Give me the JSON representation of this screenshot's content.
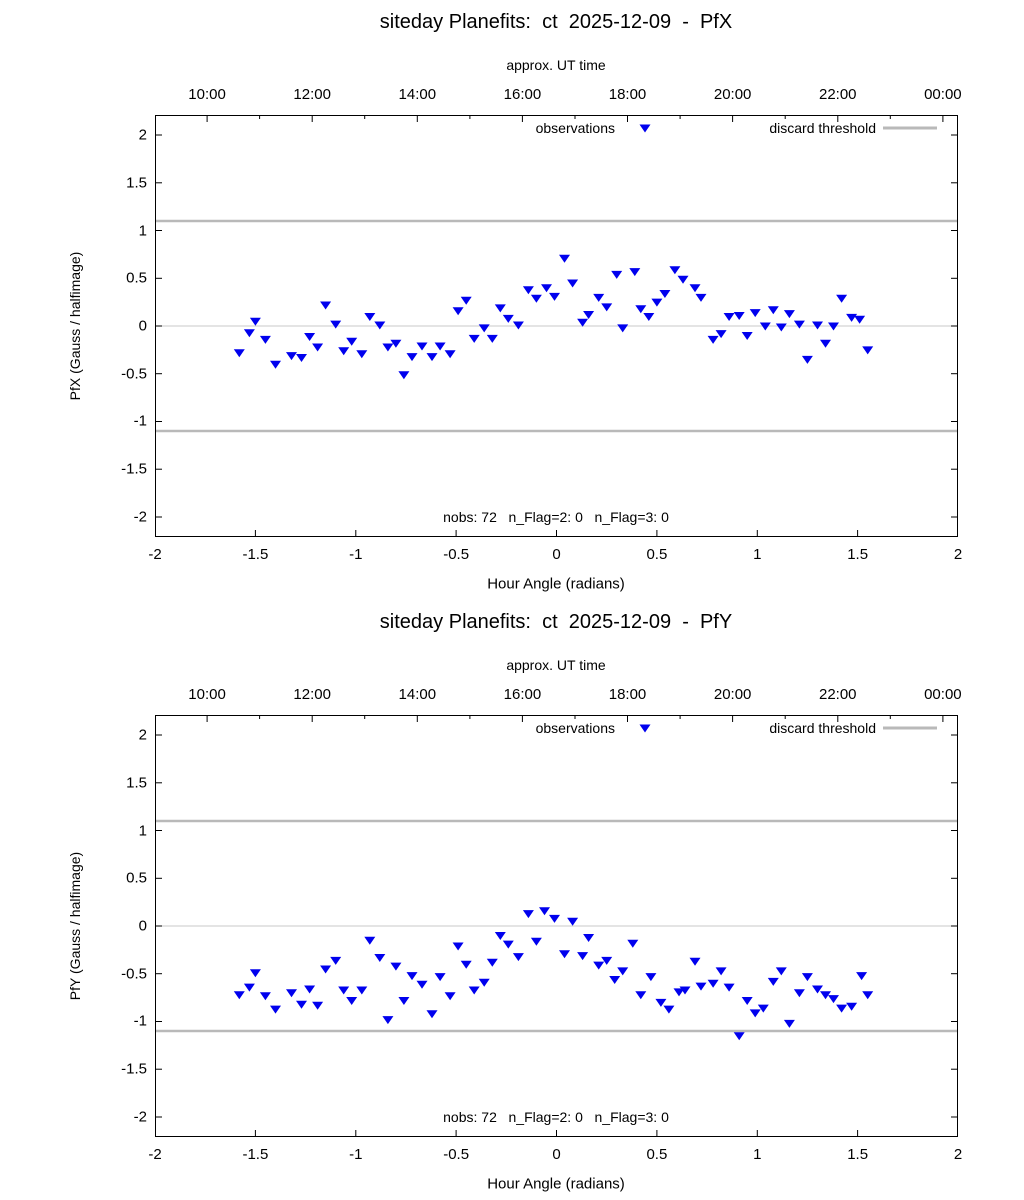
{
  "chart_data": [
    {
      "type": "scatter",
      "title": "siteday Planefits:  ct  2025-12-09  -  PfX",
      "top_axis_label": "approx. UT time",
      "xlabel": "Hour Angle (radians)",
      "ylabel": "PfX (Gauss / halfimage)",
      "annotation": "nobs: 72   n_Flag=2: 0   n_Flag=3: 0",
      "legend": [
        {
          "label": "observations",
          "marker": "triangle-down"
        },
        {
          "label": "discard threshold",
          "marker": "line"
        }
      ],
      "x_ticks": [
        -2,
        -1.5,
        -1,
        -0.5,
        0,
        0.5,
        1,
        1.5,
        2
      ],
      "y_ticks": [
        2,
        1.5,
        1,
        0.5,
        0,
        -0.5,
        -1,
        -1.5,
        -2
      ],
      "top_ticks": [
        {
          "label": "10:00",
          "ha": -1.7406
        },
        {
          "label": "12:00",
          "ha": -1.217
        },
        {
          "label": "14:00",
          "ha": -0.6934
        },
        {
          "label": "16:00",
          "ha": -0.1698
        },
        {
          "label": "18:00",
          "ha": 0.3538
        },
        {
          "label": "20:00",
          "ha": 0.8774
        },
        {
          "label": "22:00",
          "ha": 1.401
        },
        {
          "label": "00:00",
          "ha": 1.9246
        }
      ],
      "xlim": [
        -2,
        2
      ],
      "ylim": [
        -2.21,
        2.21
      ],
      "zero_line": 0,
      "discard_thresholds": [
        1.1,
        -1.1
      ],
      "colors": {
        "marker": "#0000ee",
        "threshold_line": "#b9b9b9",
        "zero_line": "#c9c9c9"
      },
      "points": [
        [
          -1.58,
          -0.28
        ],
        [
          -1.53,
          -0.07
        ],
        [
          -1.5,
          0.05
        ],
        [
          -1.45,
          -0.14
        ],
        [
          -1.4,
          -0.4
        ],
        [
          -1.32,
          -0.31
        ],
        [
          -1.27,
          -0.33
        ],
        [
          -1.23,
          -0.11
        ],
        [
          -1.19,
          -0.22
        ],
        [
          -1.15,
          0.22
        ],
        [
          -1.1,
          0.02
        ],
        [
          -1.06,
          -0.26
        ],
        [
          -1.02,
          -0.16
        ],
        [
          -0.97,
          -0.29
        ],
        [
          -0.93,
          0.1
        ],
        [
          -0.88,
          0.01
        ],
        [
          -0.84,
          -0.22
        ],
        [
          -0.8,
          -0.18
        ],
        [
          -0.76,
          -0.51
        ],
        [
          -0.72,
          -0.32
        ],
        [
          -0.67,
          -0.21
        ],
        [
          -0.62,
          -0.32
        ],
        [
          -0.58,
          -0.21
        ],
        [
          -0.53,
          -0.29
        ],
        [
          -0.49,
          0.16
        ],
        [
          -0.45,
          0.27
        ],
        [
          -0.41,
          -0.13
        ],
        [
          -0.36,
          -0.02
        ],
        [
          -0.32,
          -0.13
        ],
        [
          -0.28,
          0.19
        ],
        [
          -0.24,
          0.08
        ],
        [
          -0.19,
          0.01
        ],
        [
          -0.14,
          0.38
        ],
        [
          -0.1,
          0.29
        ],
        [
          -0.05,
          0.4
        ],
        [
          -0.01,
          0.31
        ],
        [
          0.04,
          0.71
        ],
        [
          0.08,
          0.45
        ],
        [
          0.13,
          0.04
        ],
        [
          0.16,
          0.12
        ],
        [
          0.21,
          0.3
        ],
        [
          0.25,
          0.2
        ],
        [
          0.3,
          0.54
        ],
        [
          0.33,
          -0.02
        ],
        [
          0.39,
          0.57
        ],
        [
          0.42,
          0.18
        ],
        [
          0.46,
          0.1
        ],
        [
          0.5,
          0.25
        ],
        [
          0.54,
          0.34
        ],
        [
          0.59,
          0.59
        ],
        [
          0.63,
          0.49
        ],
        [
          0.69,
          0.4
        ],
        [
          0.72,
          0.3
        ],
        [
          0.78,
          -0.14
        ],
        [
          0.82,
          -0.08
        ],
        [
          0.86,
          0.1
        ],
        [
          0.91,
          0.11
        ],
        [
          0.95,
          -0.1
        ],
        [
          0.99,
          0.14
        ],
        [
          1.04,
          0.0
        ],
        [
          1.08,
          0.17
        ],
        [
          1.12,
          -0.01
        ],
        [
          1.16,
          0.13
        ],
        [
          1.21,
          0.02
        ],
        [
          1.25,
          -0.35
        ],
        [
          1.3,
          0.01
        ],
        [
          1.34,
          -0.18
        ],
        [
          1.38,
          0.0
        ],
        [
          1.42,
          0.29
        ],
        [
          1.47,
          0.09
        ],
        [
          1.51,
          0.07
        ],
        [
          1.55,
          -0.25
        ]
      ]
    },
    {
      "type": "scatter",
      "title": "siteday Planefits:  ct  2025-12-09  -  PfY",
      "top_axis_label": "approx. UT time",
      "xlabel": "Hour Angle (radians)",
      "ylabel": "PfY (Gauss / halfimage)",
      "annotation": "nobs: 72   n_Flag=2: 0   n_Flag=3: 0",
      "legend": [
        {
          "label": "observations",
          "marker": "triangle-down"
        },
        {
          "label": "discard threshold",
          "marker": "line"
        }
      ],
      "x_ticks": [
        -2,
        -1.5,
        -1,
        -0.5,
        0,
        0.5,
        1,
        1.5,
        2
      ],
      "y_ticks": [
        2,
        1.5,
        1,
        0.5,
        0,
        -0.5,
        -1,
        -1.5,
        -2
      ],
      "top_ticks": [
        {
          "label": "10:00",
          "ha": -1.7406
        },
        {
          "label": "12:00",
          "ha": -1.217
        },
        {
          "label": "14:00",
          "ha": -0.6934
        },
        {
          "label": "16:00",
          "ha": -0.1698
        },
        {
          "label": "18:00",
          "ha": 0.3538
        },
        {
          "label": "20:00",
          "ha": 0.8774
        },
        {
          "label": "22:00",
          "ha": 1.401
        },
        {
          "label": "00:00",
          "ha": 1.9246
        }
      ],
      "xlim": [
        -2,
        2
      ],
      "ylim": [
        -2.21,
        2.21
      ],
      "zero_line": 0,
      "discard_thresholds": [
        1.1,
        -1.1
      ],
      "colors": {
        "marker": "#0000ee",
        "threshold_line": "#b9b9b9",
        "zero_line": "#c9c9c9"
      },
      "points": [
        [
          -1.58,
          -0.72
        ],
        [
          -1.53,
          -0.64
        ],
        [
          -1.5,
          -0.49
        ],
        [
          -1.45,
          -0.73
        ],
        [
          -1.4,
          -0.87
        ],
        [
          -1.32,
          -0.7
        ],
        [
          -1.27,
          -0.82
        ],
        [
          -1.23,
          -0.66
        ],
        [
          -1.19,
          -0.83
        ],
        [
          -1.15,
          -0.45
        ],
        [
          -1.1,
          -0.36
        ],
        [
          -1.06,
          -0.67
        ],
        [
          -1.02,
          -0.78
        ],
        [
          -0.97,
          -0.67
        ],
        [
          -0.93,
          -0.15
        ],
        [
          -0.88,
          -0.33
        ],
        [
          -0.84,
          -0.98
        ],
        [
          -0.8,
          -0.42
        ],
        [
          -0.76,
          -0.78
        ],
        [
          -0.72,
          -0.52
        ],
        [
          -0.67,
          -0.61
        ],
        [
          -0.62,
          -0.92
        ],
        [
          -0.58,
          -0.53
        ],
        [
          -0.53,
          -0.73
        ],
        [
          -0.49,
          -0.21
        ],
        [
          -0.45,
          -0.4
        ],
        [
          -0.41,
          -0.67
        ],
        [
          -0.36,
          -0.59
        ],
        [
          -0.32,
          -0.38
        ],
        [
          -0.28,
          -0.1
        ],
        [
          -0.24,
          -0.19
        ],
        [
          -0.19,
          -0.32
        ],
        [
          -0.14,
          0.13
        ],
        [
          -0.1,
          -0.16
        ],
        [
          -0.06,
          0.16
        ],
        [
          -0.01,
          0.08
        ],
        [
          0.04,
          -0.29
        ],
        [
          0.08,
          0.05
        ],
        [
          0.13,
          -0.31
        ],
        [
          0.16,
          -0.12
        ],
        [
          0.21,
          -0.41
        ],
        [
          0.25,
          -0.36
        ],
        [
          0.29,
          -0.56
        ],
        [
          0.33,
          -0.47
        ],
        [
          0.38,
          -0.18
        ],
        [
          0.42,
          -0.72
        ],
        [
          0.47,
          -0.53
        ],
        [
          0.52,
          -0.8
        ],
        [
          0.56,
          -0.87
        ],
        [
          0.61,
          -0.69
        ],
        [
          0.64,
          -0.67
        ],
        [
          0.69,
          -0.37
        ],
        [
          0.72,
          -0.63
        ],
        [
          0.78,
          -0.6
        ],
        [
          0.82,
          -0.47
        ],
        [
          0.86,
          -0.64
        ],
        [
          0.91,
          -1.15
        ],
        [
          0.95,
          -0.78
        ],
        [
          0.99,
          -0.91
        ],
        [
          1.03,
          -0.86
        ],
        [
          1.08,
          -0.58
        ],
        [
          1.12,
          -0.47
        ],
        [
          1.16,
          -1.02
        ],
        [
          1.21,
          -0.7
        ],
        [
          1.25,
          -0.53
        ],
        [
          1.3,
          -0.66
        ],
        [
          1.34,
          -0.72
        ],
        [
          1.38,
          -0.76
        ],
        [
          1.42,
          -0.86
        ],
        [
          1.47,
          -0.84
        ],
        [
          1.52,
          -0.52
        ],
        [
          1.55,
          -0.72
        ]
      ]
    }
  ]
}
